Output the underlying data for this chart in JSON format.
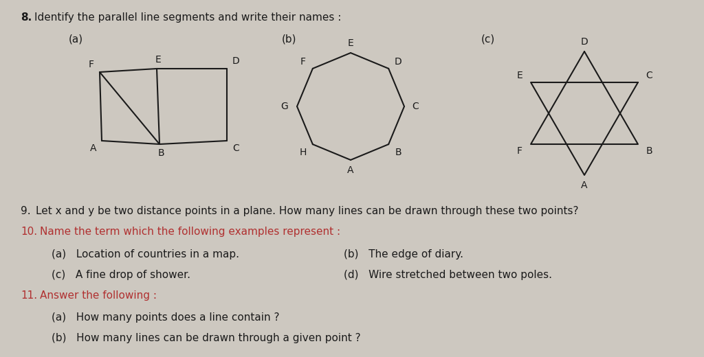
{
  "bg_color": "#cdc8c0",
  "title_color": "#1a1a1a",
  "red_color": "#b03030",
  "lc": "#1a1a1a",
  "lw": 1.5,
  "q9_text": "Let x and y be two distance points in a plane. How many lines can be drawn through these two points?",
  "q10_text": "Name the term which the following examples represent :",
  "q10a": "(a)   Location of countries in a map.",
  "q10b": "(b)   The edge of diary.",
  "q10c": "(c)   A fine drop of shower.",
  "q10d": "(d)   Wire stretched between two poles.",
  "q11_text": "Answer the following :",
  "q11a": "(a)   How many points does a line contain ?",
  "q11b": "(b)   How many lines can be drawn through a given point ?"
}
